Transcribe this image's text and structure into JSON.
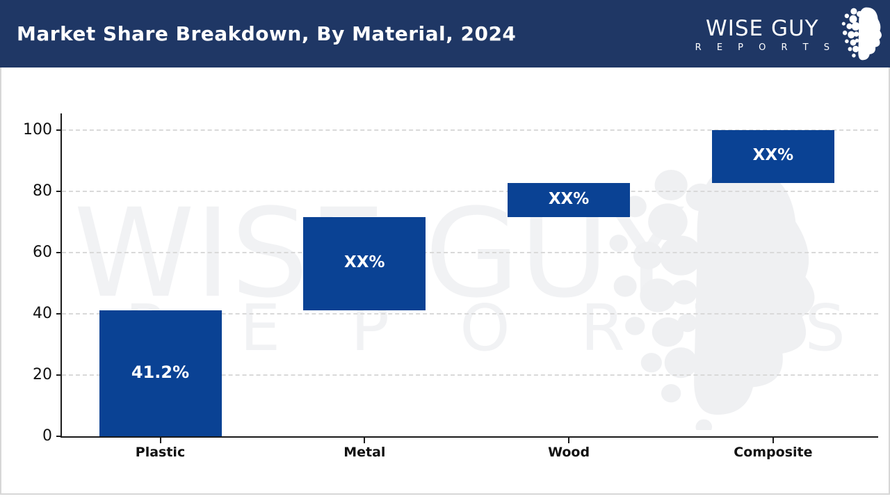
{
  "header": {
    "title": "Market Share Breakdown, By Material, 2024",
    "bg_color": "#1f3765",
    "logo": {
      "line1": "WISE GUY",
      "line2": "R E P O R T S"
    }
  },
  "watermark": {
    "line1": "WISE GUY",
    "line2": "R E P O R T S",
    "color": "#f1f2f4"
  },
  "chart_data": {
    "type": "bar",
    "subtype": "waterfall",
    "title": "Market Share Breakdown, By Material, 2024",
    "categories": [
      "Plastic",
      "Metal",
      "Wood",
      "Composite"
    ],
    "segments": [
      {
        "category": "Plastic",
        "start": 0,
        "end": 41.2,
        "label": "41.2%"
      },
      {
        "category": "Metal",
        "start": 41.2,
        "end": 71.5,
        "label": "XX%"
      },
      {
        "category": "Wood",
        "start": 71.5,
        "end": 82.7,
        "label": "XX%"
      },
      {
        "category": "Composite",
        "start": 82.7,
        "end": 100,
        "label": "XX%"
      }
    ],
    "bar_color": "#0a4294",
    "label_color": "#ffffff",
    "xlabel": "",
    "ylabel": "",
    "ylim": [
      0,
      105
    ],
    "yticks": [
      0,
      20,
      40,
      60,
      80,
      100
    ],
    "grid": "horizontal-dashed",
    "legend": "none"
  }
}
